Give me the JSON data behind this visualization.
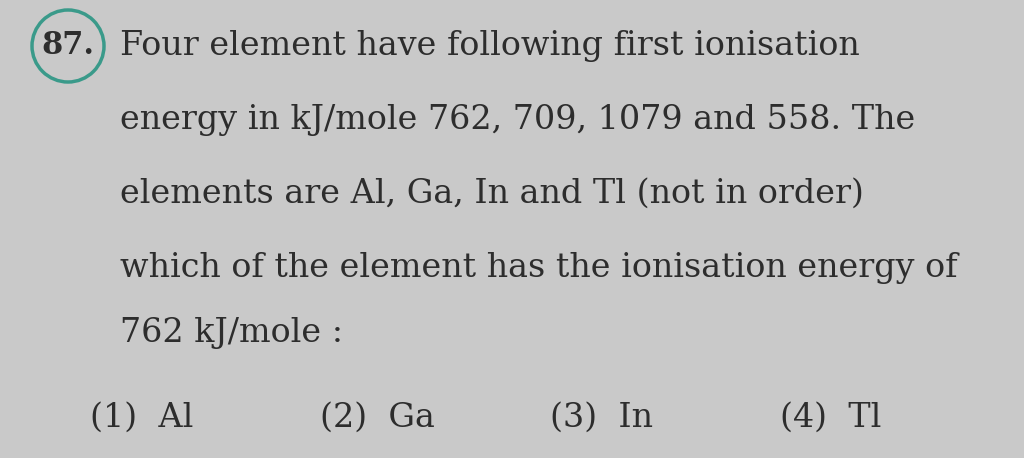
{
  "background_color": "#c9c9c9",
  "circle_border_color": "#3a9a8a",
  "circle_face_color": "#c9c9c9",
  "text_color": "#2d2d2d",
  "question_number": "87.",
  "line1": "Four element have following first ionisation",
  "line2": "energy in kJ/mole 762, 709, 1079 and 558. The",
  "line3": "elements are Al, Ga, In and Tl (not in order)",
  "line4": "which of the element has the ionisation energy of",
  "line5": "762 kJ/mole :",
  "opt1": "(1)  Al",
  "opt2": "(2)  Ga",
  "opt3": "(3)  In",
  "opt4": "(4)  Tl",
  "font_size": 24,
  "font_size_num": 22
}
